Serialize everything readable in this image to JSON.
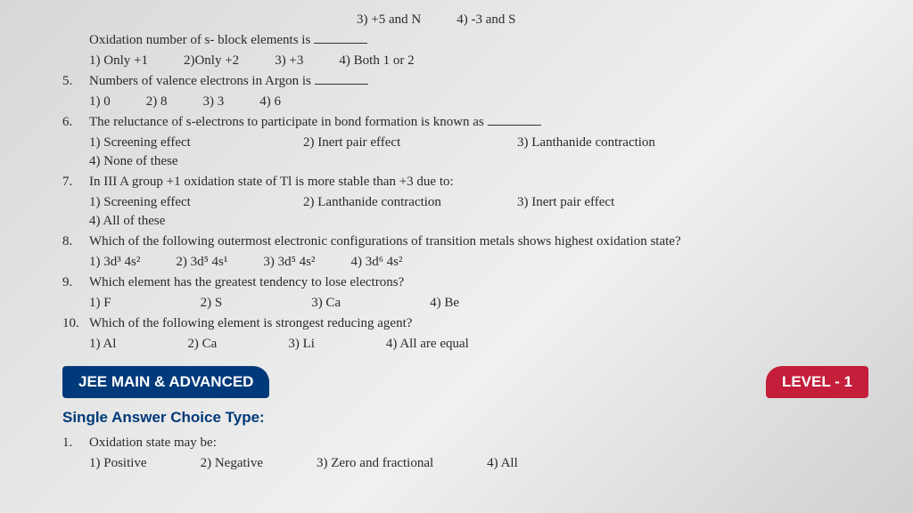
{
  "partial_top": {
    "o3": "3) +5 and N",
    "o4": "4) -3 and S"
  },
  "q4": {
    "text": "Oxidation number of s- block elements is ",
    "o1": "1) Only +1",
    "o2": "2)Only +2",
    "o3": "3) +3",
    "o4": "4) Both 1 or 2"
  },
  "q5": {
    "num": "5.",
    "text": "Numbers of valence electrons in Argon is ",
    "o1": "1) 0",
    "o2": "2) 8",
    "o3": "3) 3",
    "o4": "4) 6"
  },
  "q6": {
    "num": "6.",
    "text": "The reluctance of s-electrons to participate in bond formation is known as ",
    "o1": "1) Screening effect",
    "o2": "2) Inert pair effect",
    "o3": "3) Lanthanide contraction",
    "o4": "4) None of these"
  },
  "q7": {
    "num": "7.",
    "text": "In III A group +1 oxidation state of Tl is more stable than +3 due to:",
    "o1": "1) Screening effect",
    "o2": "2) Lanthanide contraction",
    "o3": "3) Inert pair effect",
    "o4": "4) All of these"
  },
  "q8": {
    "num": "8.",
    "text": "Which of the following outermost electronic configurations of transition metals shows    highest oxidation state?",
    "o1": "1) 3d³ 4s²",
    "o2": "2) 3d⁵ 4s¹",
    "o3": "3) 3d⁵ 4s²",
    "o4": "4) 3d⁶ 4s²"
  },
  "q9": {
    "num": "9.",
    "text": "Which element has the greatest tendency to lose electrons?",
    "o1": "1) F",
    "o2": "2) S",
    "o3": "3) Ca",
    "o4": "4) Be"
  },
  "q10": {
    "num": "10.",
    "text": "Which of the following element is strongest reducing agent?",
    "o1": "1) Al",
    "o2": "2) Ca",
    "o3": "3) Li",
    "o4": "4) All are equal"
  },
  "badge_left": "JEE MAIN & ADVANCED",
  "badge_right": "LEVEL - 1",
  "section": "Single Answer Choice Type:",
  "sq1": {
    "num": "1.",
    "text": "Oxidation state may be:",
    "o1": "1) Positive",
    "o2": "2) Negative",
    "o3": "3) Zero and fractional",
    "o4": "4) All"
  },
  "colors": {
    "blue": "#003a7a",
    "red": "#c41e3a",
    "text": "#2a2a2a"
  }
}
